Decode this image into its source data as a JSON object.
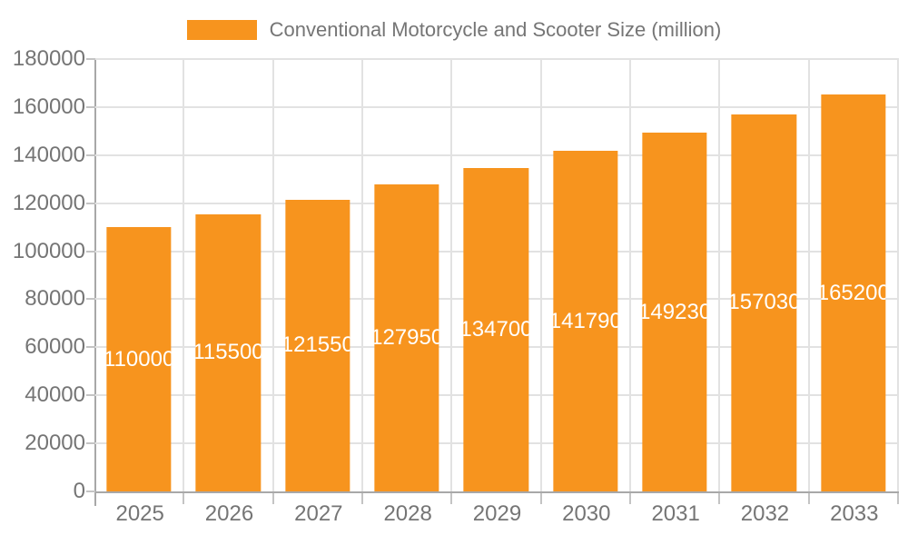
{
  "chart_data": {
    "type": "bar",
    "title": "",
    "legend_position": "top",
    "legend_entries": [
      "Conventional Motorcycle and Scooter Size (million)"
    ],
    "categories": [
      "2025",
      "2026",
      "2027",
      "2028",
      "2029",
      "2030",
      "2031",
      "2032",
      "2033"
    ],
    "series": [
      {
        "name": "Conventional Motorcycle and Scooter Size (million)",
        "values": [
          110000,
          115500,
          121550,
          127950,
          134700,
          141790,
          149230,
          157030,
          165200
        ]
      }
    ],
    "bar_value_labels": [
      "110000",
      "115500",
      "121550",
      "127950",
      "134700",
      "141790",
      "149230",
      "157030",
      "165200"
    ],
    "xlabel": "",
    "ylabel": "",
    "ylim": [
      0,
      180000
    ],
    "yticks": [
      0,
      20000,
      40000,
      60000,
      80000,
      100000,
      120000,
      140000,
      160000,
      180000
    ],
    "grid": "both"
  },
  "colors": {
    "bar": "#F7941E",
    "grid_line": "#E2E2E2",
    "axis_line": "#A8A8A8",
    "tick_mark": "#C4C4C4",
    "axis_text": "#757575",
    "legend_text": "#757575",
    "bar_label_text": "#FFFFFF",
    "background": "#FFFFFF"
  }
}
